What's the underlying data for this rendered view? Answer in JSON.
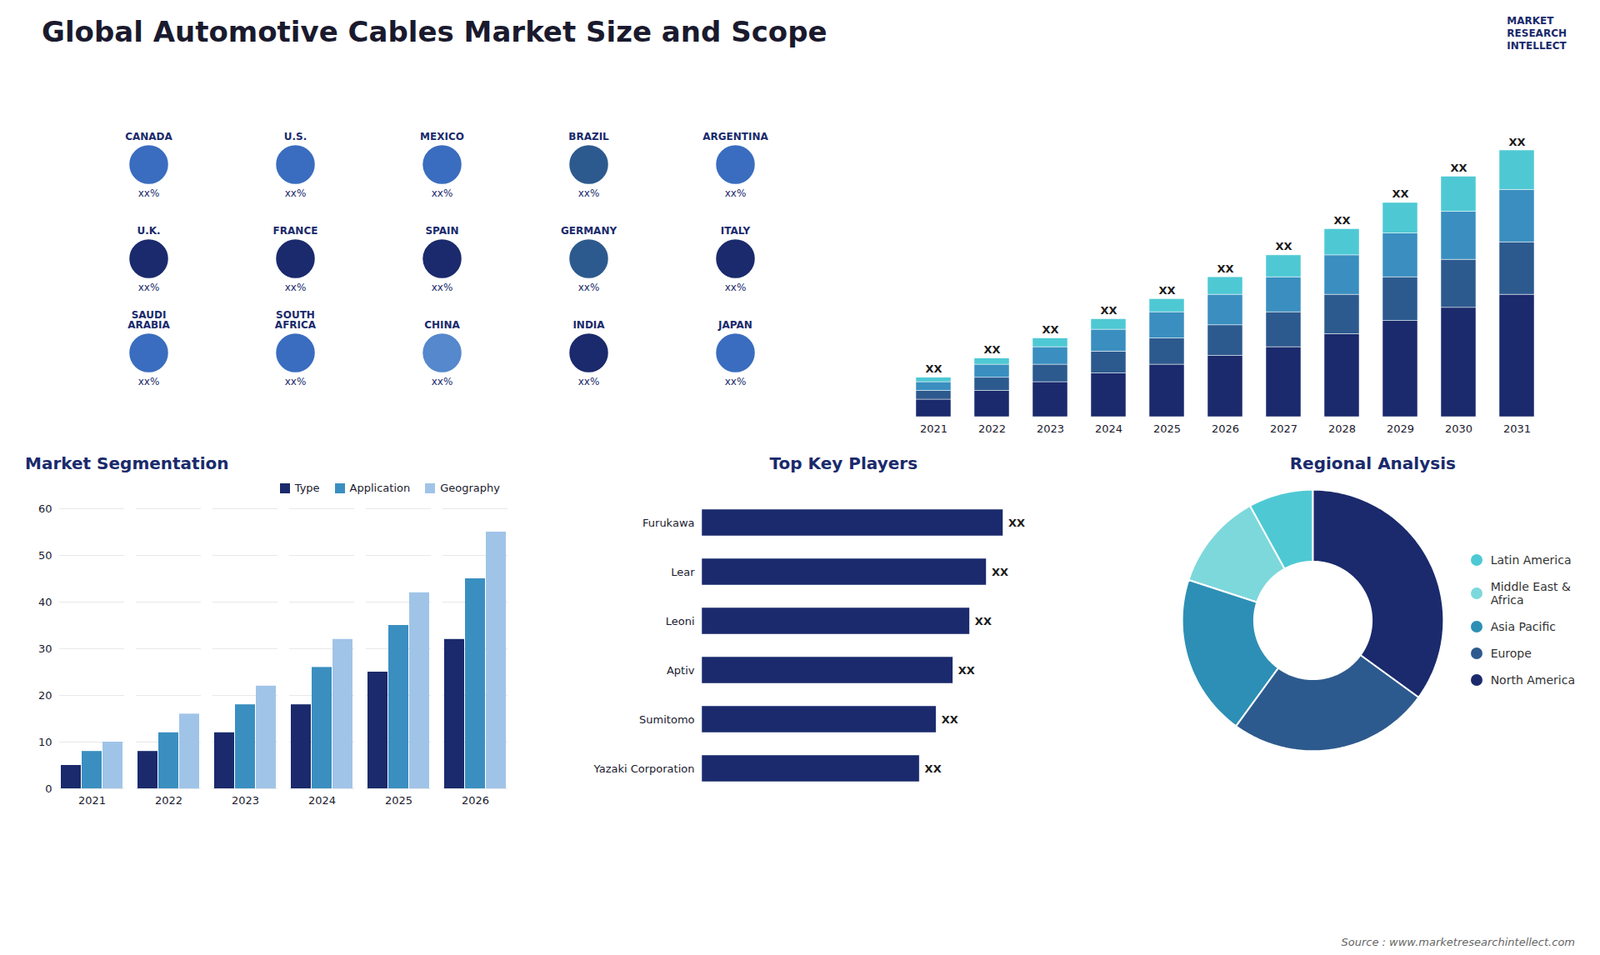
{
  "title": "Global Automotive Cables Market Size and Scope",
  "annotations": [
    "MARKET\nRESEARCH\nINTELLECT",
    "Source : www.marketresearchintellect.com"
  ],
  "chart_data": [
    {
      "type": "map",
      "categories": [
        "CANADA",
        "U.S.",
        "MEXICO",
        "BRAZIL",
        "ARGENTINA",
        "U.K.",
        "FRANCE",
        "SPAIN",
        "GERMANY",
        "ITALY",
        "SAUDI\nARABIA",
        "SOUTH\nAFRICA",
        "CHINA",
        "INDIA",
        "JAPAN"
      ],
      "colors": [
        "#3a6dbf",
        "#3a6dbf",
        "#3a6dbf",
        "#2d5a8e",
        "#3a6dbf",
        "#1a2a6c",
        "#1a2a6c",
        "#1a2a6c",
        "#2d5a8e",
        "#1a2a6c",
        "#3a6dbf",
        "#3a6dbf",
        "#5588cc",
        "#1a2a6c",
        "#3a6dbf"
      ],
      "annotations": [
        "xx%"
      ]
    },
    {
      "type": "bar",
      "stacked": true,
      "categories": [
        "2021",
        "2022",
        "2023",
        "2024",
        "2025",
        "2026",
        "2027",
        "2028",
        "2029",
        "2030",
        "2031"
      ],
      "series": [
        {
          "color": "#1a2a6c",
          "values": [
            2,
            3,
            4,
            5,
            6,
            7,
            8,
            9.5,
            11,
            12.5,
            14
          ]
        },
        {
          "color": "#2d5a8e",
          "values": [
            1,
            1.5,
            2,
            2.5,
            3,
            3.5,
            4,
            4.5,
            5,
            5.5,
            6
          ]
        },
        {
          "color": "#3a8fc0",
          "values": [
            1,
            1.5,
            2,
            2.5,
            3,
            3.5,
            4,
            4.5,
            5,
            5.5,
            6
          ]
        },
        {
          "color": "#4ec9d4",
          "values": [
            0.5,
            0.7,
            1,
            1.2,
            1.5,
            2,
            2.5,
            3,
            3.5,
            4,
            4.5
          ]
        }
      ],
      "ylim": [
        0,
        38.125
      ],
      "tick_labels": "x",
      "annotations": [
        "XX"
      ]
    },
    {
      "type": "bar",
      "title": "Market Segmentation",
      "categories": [
        "2021",
        "2022",
        "2023",
        "2024",
        "2025",
        "2026"
      ],
      "series": [
        {
          "name": "Type",
          "color": "#1a2a6c",
          "values": [
            5,
            8,
            12,
            18,
            25,
            32
          ]
        },
        {
          "name": "Application",
          "color": "#3a8fc0",
          "values": [
            8,
            12,
            18,
            26,
            35,
            45
          ]
        },
        {
          "name": "Geography",
          "color": "#a0c4e8",
          "values": [
            10,
            16,
            22,
            32,
            42,
            55
          ]
        }
      ],
      "ylim": [
        0,
        60
      ],
      "yticks": [
        0,
        10,
        20,
        30,
        40,
        50,
        60
      ],
      "grid": true,
      "legend": "upper right"
    },
    {
      "type": "bar",
      "orientation": "horizontal",
      "title": "Top Key Players",
      "categories": [
        "Furukawa",
        "Lear",
        "Leoni",
        "Aptiv",
        "Sumitomo",
        "Yazaki Corporation"
      ],
      "values": [
        9,
        8.5,
        8,
        7.5,
        7,
        6.5
      ],
      "color": "#1a2a6c",
      "xlim": [
        0,
        11.7
      ],
      "tick_labels": "y",
      "annotations": [
        "XX"
      ]
    },
    {
      "type": "pie",
      "title": "Regional Analysis",
      "categories": [
        "Latin America",
        "Middle East &\nAfrica",
        "Asia Pacific",
        "Europe",
        "North America"
      ],
      "values": [
        8,
        12,
        20,
        25,
        35
      ],
      "colors": [
        "#4ec9d4",
        "#7dd8dc",
        "#2d8fb5",
        "#2d5a8e",
        "#1a2a6c"
      ],
      "legend": "right"
    }
  ]
}
